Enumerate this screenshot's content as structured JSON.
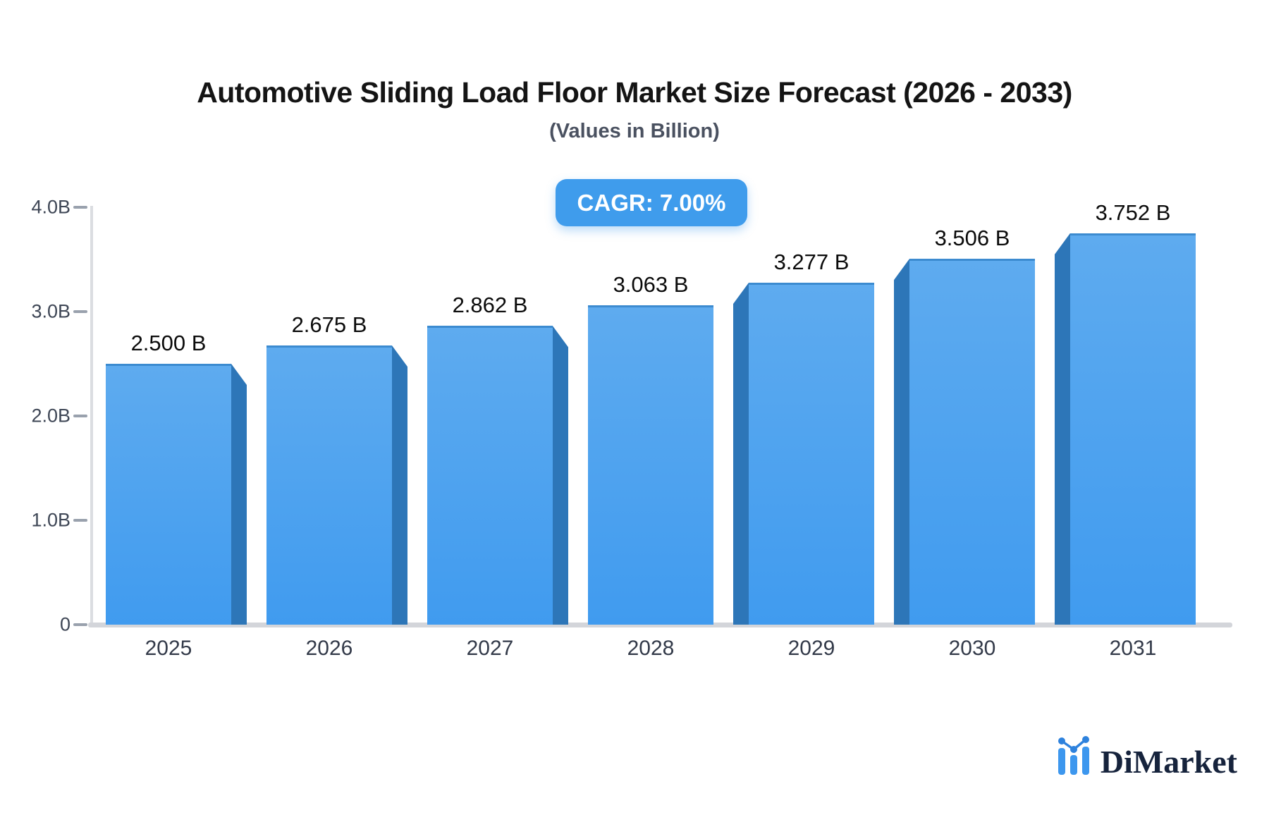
{
  "title": "Automotive Sliding Load Floor Market Size Forecast (2026 - 2033)",
  "subtitle": "(Values in Billion)",
  "badge": {
    "label": "CAGR: 7.00%",
    "color": "#3f9cec"
  },
  "watermark": {
    "brand": "DiMarket",
    "icon": "bar-line-chart-icon"
  },
  "chart_data": {
    "type": "bar",
    "title": "Automotive Sliding Load Floor Market Size Forecast (2026 - 2033)",
    "subtitle": "(Values in Billion)",
    "categories": [
      "2025",
      "2026",
      "2027",
      "2028",
      "2029",
      "2030",
      "2031"
    ],
    "values": [
      2.5,
      2.675,
      2.862,
      3.063,
      3.277,
      3.506,
      3.752
    ],
    "value_labels": [
      "2.500 B",
      "2.675 B",
      "2.862 B",
      "3.063 B",
      "3.277 B",
      "3.506 B",
      "3.752 B"
    ],
    "unit": "Billion",
    "cagr": "7.00%",
    "ylim": [
      0,
      4
    ],
    "y_ticks": [
      {
        "label": "4.0B",
        "value": 4
      },
      {
        "label": "3.0B",
        "value": 3
      },
      {
        "label": "2.0B",
        "value": 2
      },
      {
        "label": "1.0B",
        "value": 1
      },
      {
        "label": "0",
        "value": 0
      }
    ],
    "grid": false,
    "legend": "none",
    "colors": {
      "bar_top": "#5eabef",
      "bar_bottom": "#409bef",
      "bar_edge": "#3c8bd0",
      "bar_side_3d": "#2d76b8",
      "axis_line": "#dbdde1",
      "baseline": "#d3d5da",
      "tick": "#99a1ad",
      "label_text": "#0b0b0b"
    }
  }
}
